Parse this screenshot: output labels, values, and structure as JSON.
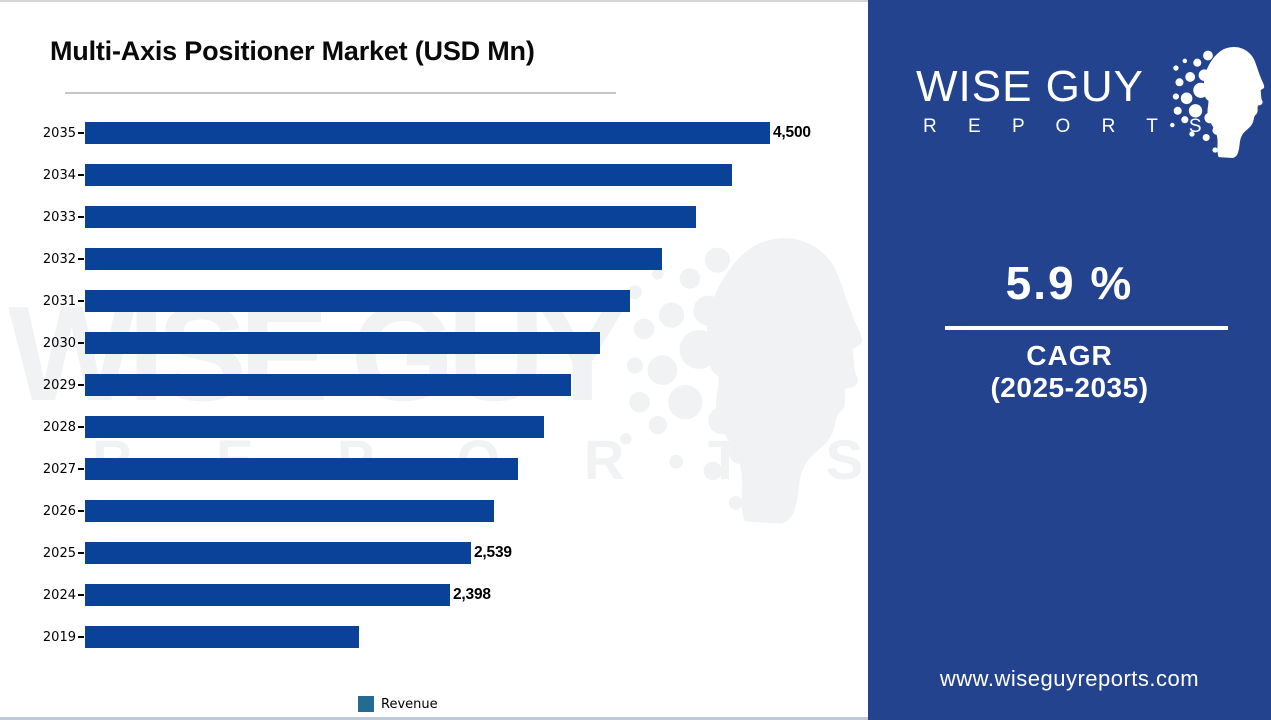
{
  "chart": {
    "title": "Multi-Axis Positioner Market (USD Mn)",
    "legend_label": "Revenue",
    "watermark_line1": "WISE GUY",
    "watermark_line2": "R E P O R T S"
  },
  "chart_data": {
    "type": "bar",
    "orientation": "horizontal",
    "title": "Multi-Axis Positioner Market (USD Mn)",
    "xlabel": "",
    "ylabel": "",
    "xlim": [
      0,
      4500
    ],
    "grid": false,
    "legend_position": "bottom",
    "categories": [
      "2035",
      "2034",
      "2033",
      "2032",
      "2031",
      "2030",
      "2029",
      "2028",
      "2027",
      "2026",
      "2025",
      "2024",
      "2019"
    ],
    "values": [
      4500,
      4253,
      4016,
      3793,
      3581,
      3382,
      3193,
      3015,
      2847,
      2689,
      2539,
      2398,
      1800
    ],
    "data_labels": {
      "2035": "4,500",
      "2025": "2,539",
      "2024": "2,398"
    },
    "series": [
      {
        "name": "Revenue",
        "color": "#0a4299"
      }
    ]
  },
  "brand_panel": {
    "logo_line1": "WISE GUY",
    "logo_line2": "R E P O R T S",
    "cagr_value": "5.9 %",
    "cagr_label": "CAGR",
    "cagr_range": "(2025-2035)",
    "website": "www.wiseguyreports.com"
  },
  "colors": {
    "bar": "#0a4299",
    "legend_swatch": "#226b91",
    "panel_bg": "#24438f",
    "watermark_gray": "#f1f2f4",
    "title_underline": "#c6c6c6"
  }
}
